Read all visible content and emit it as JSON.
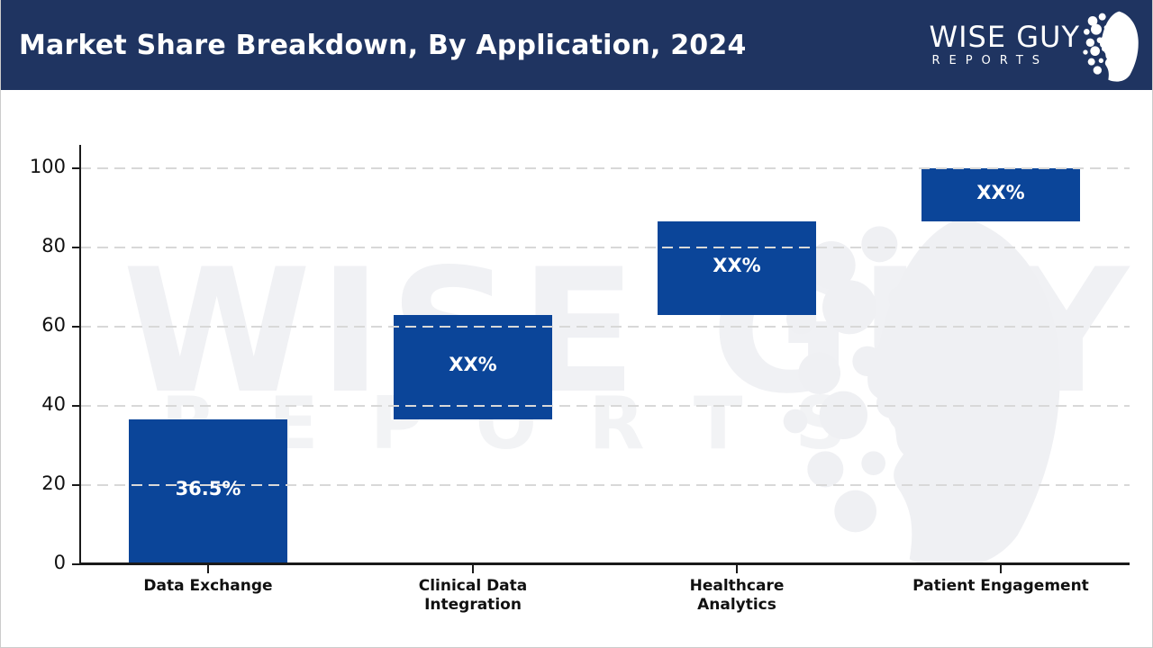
{
  "header": {
    "title": "Market Share Breakdown, By Application, 2024",
    "logo": {
      "name": "WISE GUY",
      "tagline": "REPORTS"
    }
  },
  "watermark": {
    "name": "WISE GUY",
    "tagline": "REPORTS"
  },
  "chart_data": {
    "type": "bar",
    "subtype": "waterfall-breakdown",
    "title": "Market Share Breakdown, By Application, 2024",
    "categories": [
      "Data Exchange",
      "Clinical Data\nIntegration",
      "Healthcare\nAnalytics",
      "Patient Engagement"
    ],
    "series": [
      {
        "name": "Data Exchange",
        "start": 0,
        "end": 36.5,
        "label": "36.5%"
      },
      {
        "name": "Clinical Data Integration",
        "start": 36.5,
        "end": 63,
        "label": "XX%"
      },
      {
        "name": "Healthcare Analytics",
        "start": 63,
        "end": 86.5,
        "label": "XX%"
      },
      {
        "name": "Patient Engagement",
        "start": 86.5,
        "end": 100,
        "label": "XX%"
      }
    ],
    "yticks": [
      0,
      20,
      40,
      60,
      80,
      100
    ],
    "ylim": [
      0,
      105
    ],
    "xlabel": "",
    "ylabel": "",
    "grid": "horizontal-dashed",
    "legend": "none",
    "colors": {
      "bar": "#0b4599",
      "bar_label": "#ffffff",
      "grid": "#d8d8d8",
      "axis": "#1a1a1a",
      "tick_text": "#111111",
      "header_bg": "#1f3461",
      "header_text": "#ffffff",
      "watermark": "#f0f1f4"
    }
  }
}
